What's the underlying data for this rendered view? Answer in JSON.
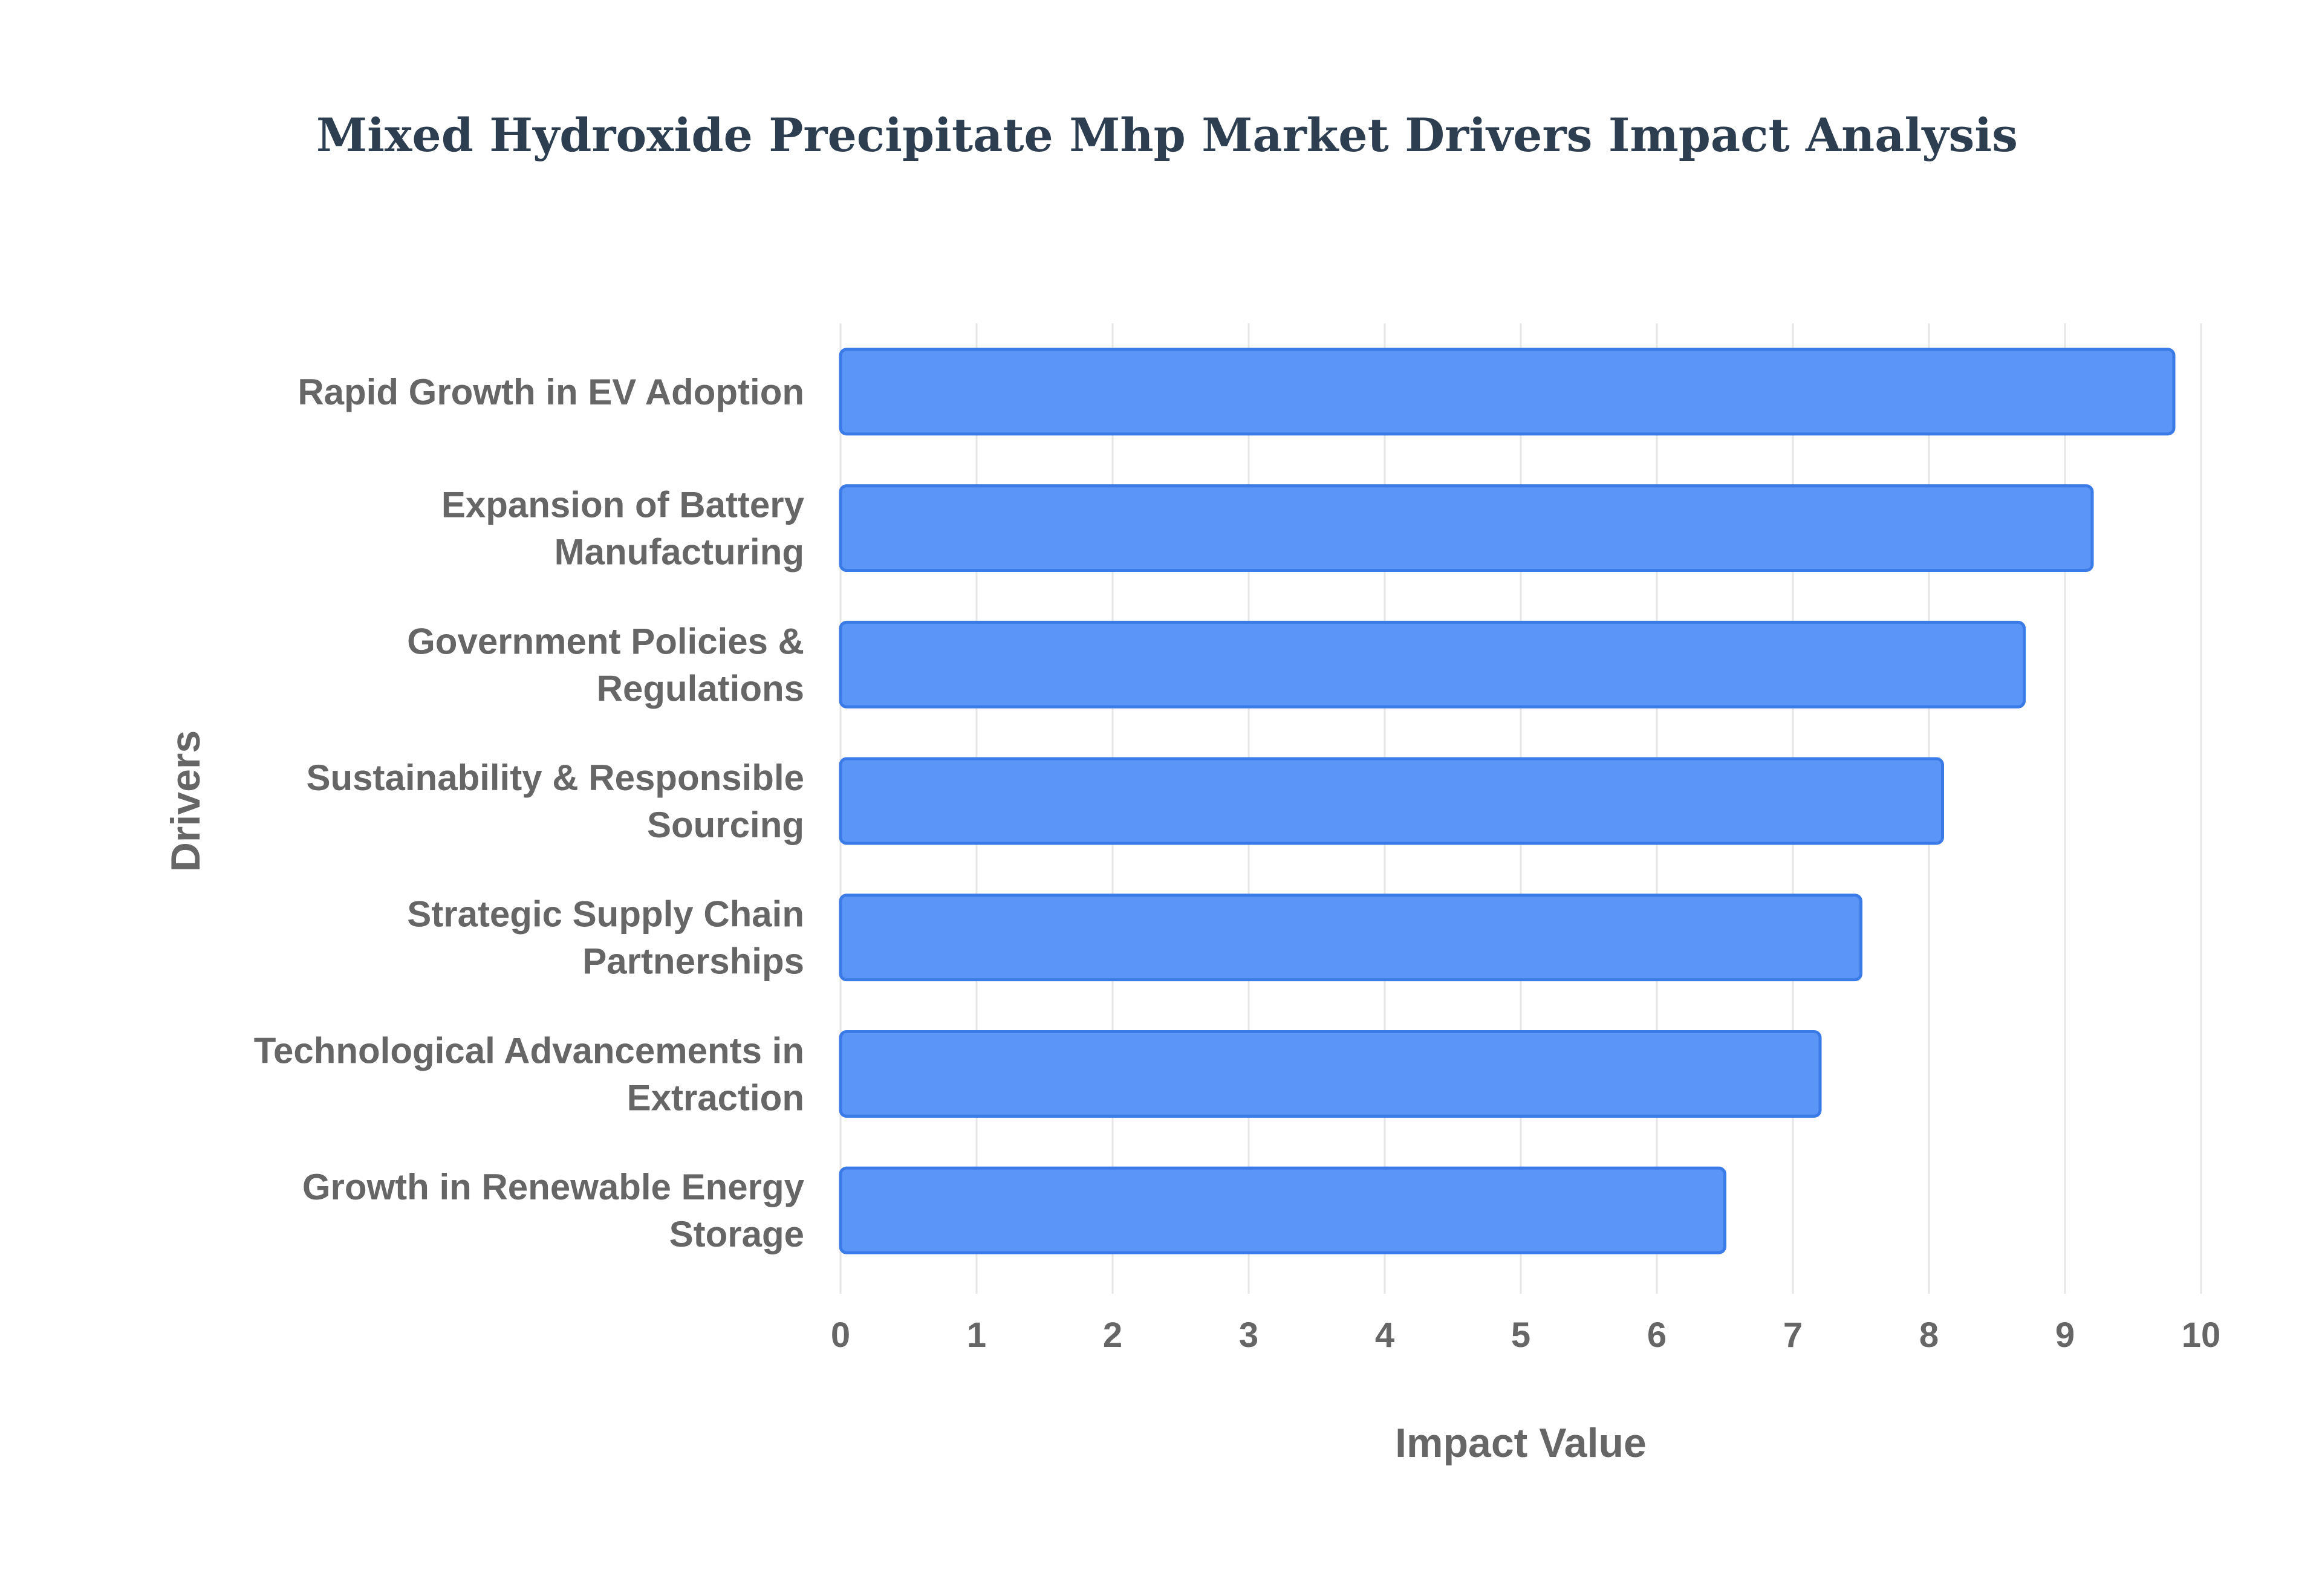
{
  "chart_data": {
    "type": "bar",
    "orientation": "horizontal",
    "title": "Mixed Hydroxide Precipitate Mhp Market Drivers Impact Analysis",
    "xlabel": "Impact Value",
    "ylabel": "Drivers",
    "xlim": [
      0,
      10
    ],
    "ticks": [
      "0",
      "1",
      "2",
      "3",
      "4",
      "5",
      "6",
      "7",
      "8",
      "9",
      "10"
    ],
    "grid": true,
    "categories": [
      [
        "Rapid Growth in EV Adoption"
      ],
      [
        "Expansion of Battery",
        "Manufacturing"
      ],
      [
        "Government Policies &",
        "Regulations"
      ],
      [
        "Sustainability & Responsible",
        "Sourcing"
      ],
      [
        "Strategic Supply Chain",
        "Partnerships"
      ],
      [
        "Technological Advancements in",
        "Extraction"
      ],
      [
        "Growth in Renewable Energy",
        "Storage"
      ]
    ],
    "values": [
      9.8,
      9.2,
      8.7,
      8.1,
      7.5,
      7.2,
      6.5
    ]
  },
  "colors": {
    "title": "#2c3e50",
    "bar_fill": "#5b95f5",
    "bar_stroke": "#3b7be8",
    "text": "#666666",
    "grid": "#e6e6e6"
  }
}
